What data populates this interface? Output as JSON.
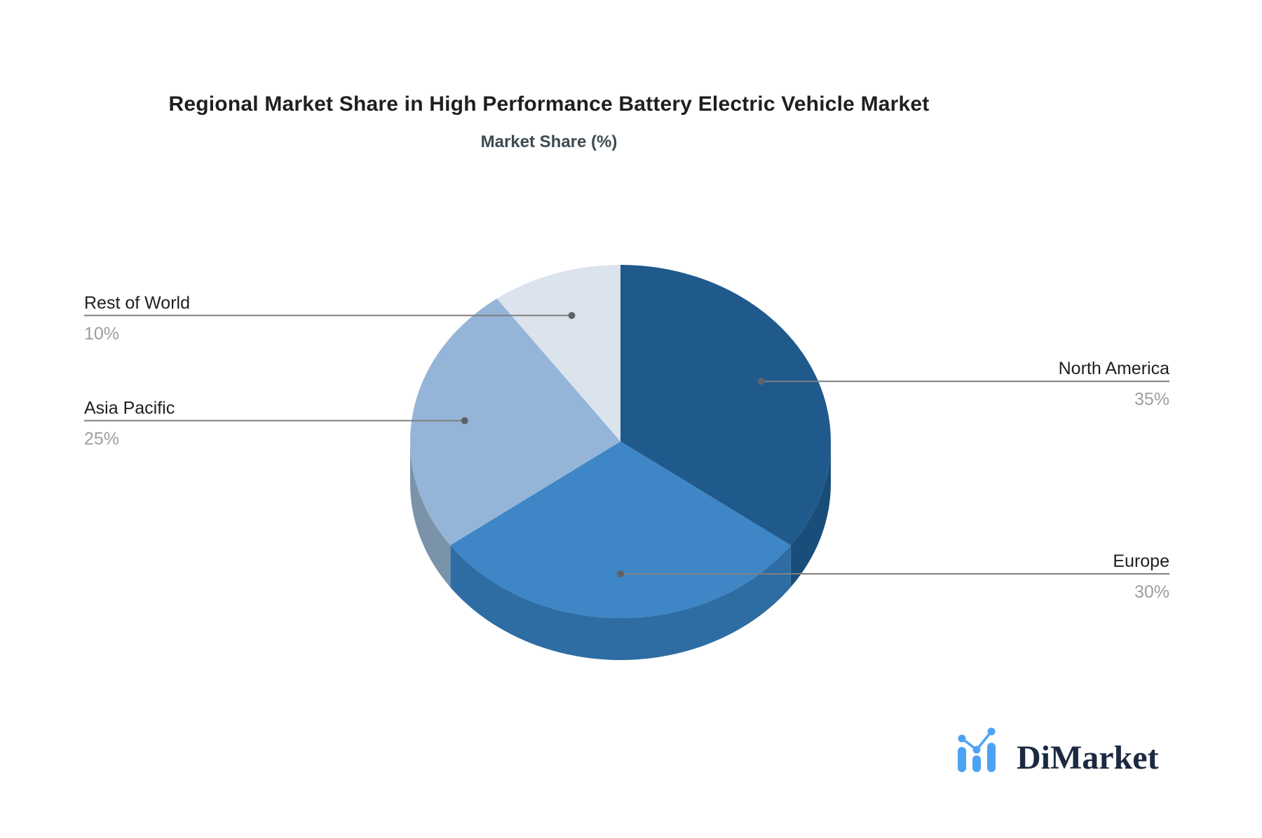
{
  "chart_data": {
    "type": "pie",
    "style": "3d",
    "title": "Regional Market Share in High Performance Battery Electric Vehicle Market",
    "subtitle": "Market Share (%)",
    "start_angle_deg": -90,
    "direction": "clockwise",
    "legend": "none",
    "slices": [
      {
        "label": "North America",
        "value": 35,
        "pct_label": "35%",
        "color": "#205a8d",
        "depth_color": "#1a4e7a",
        "label_side": "right"
      },
      {
        "label": "Europe",
        "value": 30,
        "pct_label": "30%",
        "color": "#3e86c6",
        "depth_color": "#2e6da3",
        "label_side": "right"
      },
      {
        "label": "Asia Pacific",
        "value": 25,
        "pct_label": "25%",
        "color": "#94b5d8",
        "depth_color": "#7a93a9",
        "label_side": "left"
      },
      {
        "label": "Rest of World",
        "value": 10,
        "pct_label": "10%",
        "color": "#dbe3ed",
        "depth_color": "#c2cdda",
        "label_side": "left"
      }
    ],
    "label_style": {
      "name_color": "#1f1f1f",
      "pct_color": "#9e9e9e",
      "leader_line_color": "#7f7f7f",
      "leader_dot_color": "#5f6368"
    }
  },
  "branding": {
    "logo_text": "DiMarket",
    "logo_text_color": "#1b2a40",
    "icon": "bar-line-chart-icon",
    "icon_color": "#4da3f3"
  }
}
